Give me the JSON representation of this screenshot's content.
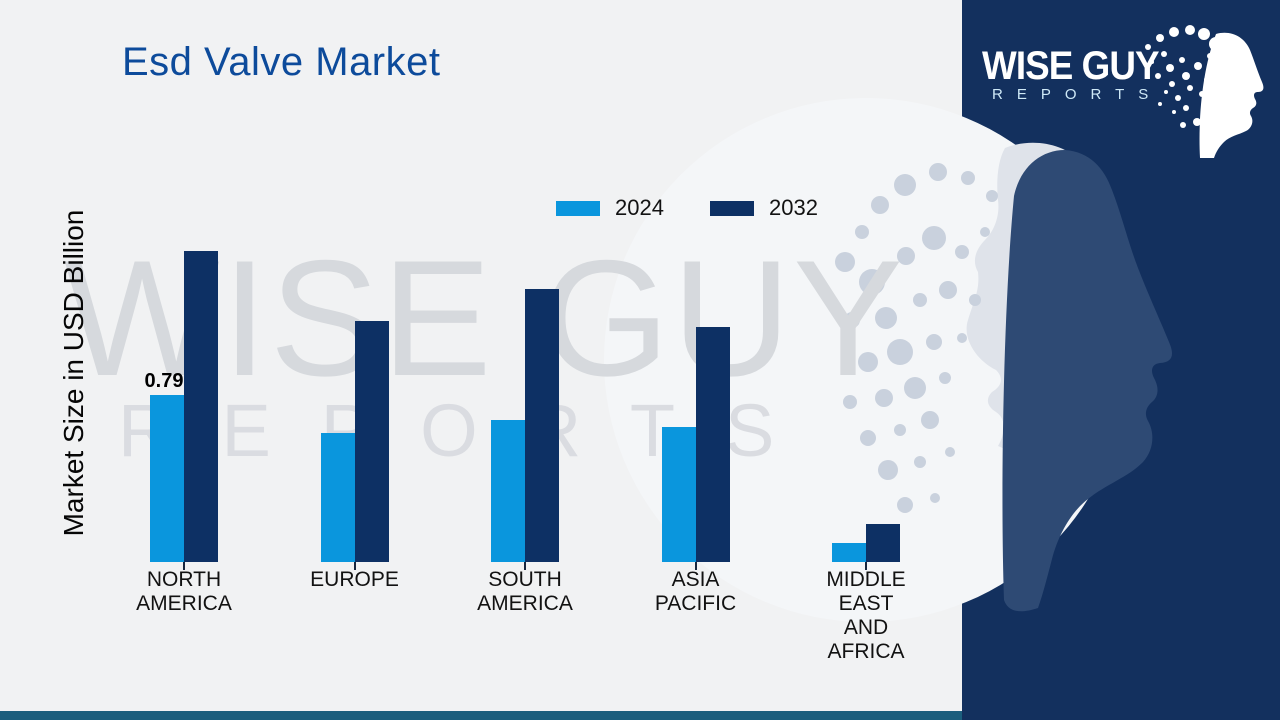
{
  "page": {
    "background_color": "#f1f2f3",
    "footer_strip_color": "#1b5e7d"
  },
  "header": {
    "title": "Esd Valve Market",
    "title_color": "#0d4b9b"
  },
  "brand": {
    "wordmark": "WISE GUY",
    "wordmark_sub": "REPORTS",
    "panel_color": "#13305e"
  },
  "watermark": {
    "line1": "WISE GUY",
    "line2": "REPORTS"
  },
  "chart_data": {
    "type": "bar",
    "title": "Esd Valve Market",
    "ylabel": "Market Size in USD Billion",
    "xlabel": "",
    "unit": "USD Billion",
    "ylim": [
      0,
      1.6
    ],
    "grid": false,
    "legend_position": "top-right",
    "categories": [
      "NORTH AMERICA",
      "EUROPE",
      "SOUTH AMERICA",
      "ASIA PACIFIC",
      "MIDDLE EAST AND AFRICA"
    ],
    "category_lines": [
      [
        "NORTH",
        "AMERICA"
      ],
      [
        "EUROPE"
      ],
      [
        "SOUTH",
        "AMERICA"
      ],
      [
        "ASIA",
        "PACIFIC"
      ],
      [
        "MIDDLE",
        "EAST",
        "AND",
        "AFRICA"
      ]
    ],
    "series": [
      {
        "name": "2024",
        "color": "#0a96dd",
        "values": [
          0.79,
          0.61,
          0.67,
          0.64,
          0.09
        ]
      },
      {
        "name": "2032",
        "color": "#0d3064",
        "values": [
          1.47,
          1.14,
          1.29,
          1.11,
          0.18
        ]
      }
    ],
    "annotations": [
      {
        "category": "NORTH AMERICA",
        "series": "2024",
        "text": "0.79"
      }
    ]
  }
}
